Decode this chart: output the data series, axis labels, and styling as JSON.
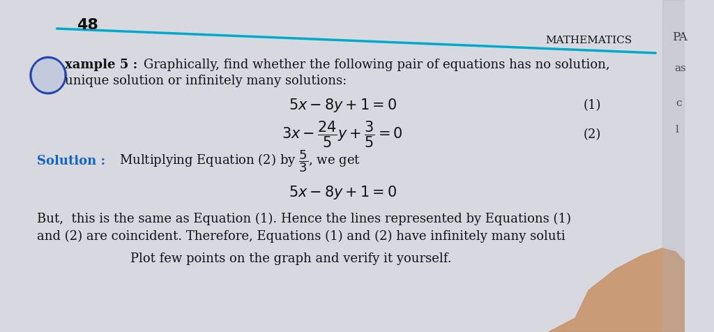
{
  "page_number": "48",
  "header_text": "MATHEMATICS",
  "header_line_color": "#00AACC",
  "background_color": "#D8D8E0",
  "text_color": "#111111",
  "solution_color": "#1166BB",
  "circle_color": "#2244AA",
  "eq_label1": "(1)",
  "eq_label2": "(2)",
  "example_label": "xample 5 :",
  "example_desc": "Graphically, find whether the following pair of equations has no solution,",
  "example_desc2": "unique solution or infinitely many solutions:",
  "conclusion1": "But,  this is the same as Equation (1). Hence the lines represented by Equations (1)",
  "conclusion2": "and (2) are coincident. Therefore, Equations (1) and (2) have infinitely many soluti",
  "final_line": "Plot few points on the graph and verify it yourself."
}
